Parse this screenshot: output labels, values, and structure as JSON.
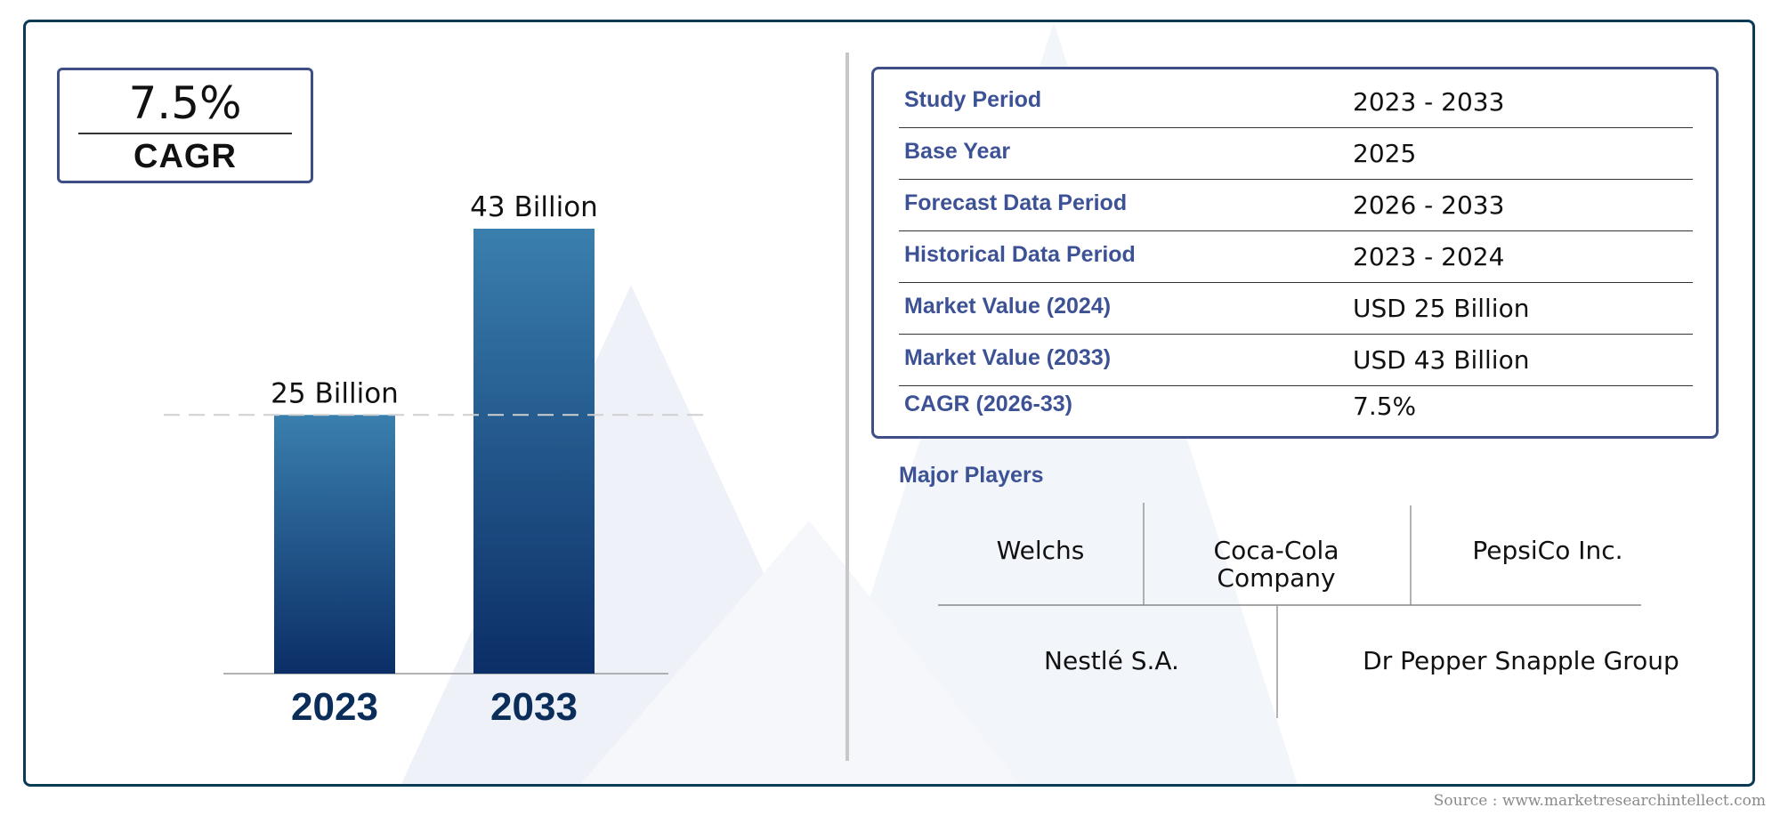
{
  "cagr": {
    "value": "7.5%",
    "label": "CAGR"
  },
  "chart_data": {
    "type": "bar",
    "categories": [
      "2023",
      "2033"
    ],
    "values": [
      25,
      43
    ],
    "data_labels": [
      "25 Billion",
      "43 Billion"
    ],
    "unit": "Billion",
    "ylim": [
      0,
      43
    ],
    "reference_line": 25,
    "grid": false,
    "legend": "none",
    "colors": {
      "bar_top": "#3a7fae",
      "bar_bottom": "#0b2e66",
      "tick_label": "#0b2d5a"
    }
  },
  "summary": {
    "rows": [
      {
        "label": "Study Period",
        "value": "2023 - 2033"
      },
      {
        "label": "Base Year",
        "value": "2025"
      },
      {
        "label": "Forecast Data Period",
        "value": "2026 - 2033"
      },
      {
        "label": "Historical Data Period",
        "value": "2023 - 2024"
      },
      {
        "label": "Market Value (2024)",
        "value": "USD 25 Billion"
      },
      {
        "label": "Market Value (2033)",
        "value": "USD 43 Billion"
      },
      {
        "label": "CAGR (2026-33)",
        "value": "7.5%"
      }
    ]
  },
  "players": {
    "title": "Major Players",
    "row1": [
      "Welchs",
      "Coca-Cola Company",
      "PepsiCo Inc."
    ],
    "row2": [
      "Nestlé S.A.",
      "Dr Pepper Snapple Group"
    ]
  },
  "source": "Source : www.marketresearchintellect.com",
  "colors": {
    "frame": "#0b3a57",
    "accent": "#3d4f86",
    "label": "#3d5295"
  }
}
